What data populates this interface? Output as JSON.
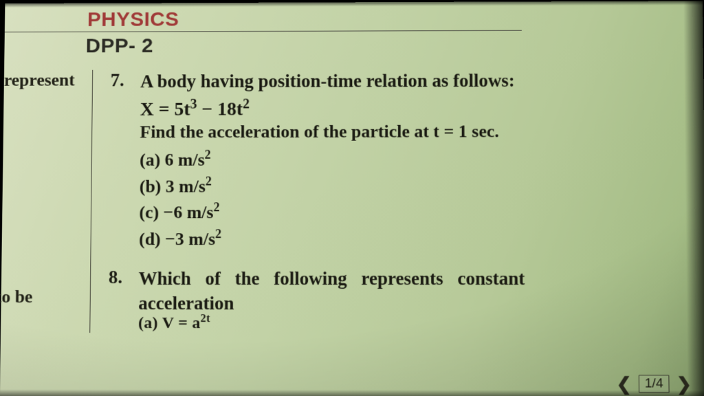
{
  "header": {
    "subject": "PHYSICS",
    "sheet": "DPP- 2"
  },
  "leftcol": {
    "word1": "represent",
    "word2": "to be"
  },
  "q7": {
    "num": "7.",
    "stem": "A body having position-time relation as follows:",
    "equation_html": "X = 5t<sup>3</sup> − 18t<sup>2</sup>",
    "followup": "Find the acceleration of the particle at t = 1 sec.",
    "opts": {
      "a": "(a) 6 m/s<sup>2</sup>",
      "b": "(b) 3 m/s<sup>2</sup>",
      "c": "(c) −6 m/s<sup>2</sup>",
      "d": "(d) −3 m/s<sup>2</sup>"
    }
  },
  "q8": {
    "num": "8.",
    "line1": "Which of the following represents constant",
    "line2": "acceleration",
    "partial_opt": "(a) V = a<sup>2t</sup>"
  },
  "pager": {
    "current": 1,
    "total": 4,
    "label": "1/4"
  },
  "style": {
    "subject_color": "#a03a38",
    "text_color": "#1a1a12",
    "rule_color": "#4a4a42",
    "bg_gradient": [
      "#d8e0c0",
      "#cdd9b2",
      "#c2d2a6",
      "#b6c998",
      "#a4bc85",
      "#8fa972"
    ],
    "subject_fontsize": 30,
    "dpp_fontsize": 30,
    "body_fontsize": 27,
    "option_fontsize": 26
  }
}
